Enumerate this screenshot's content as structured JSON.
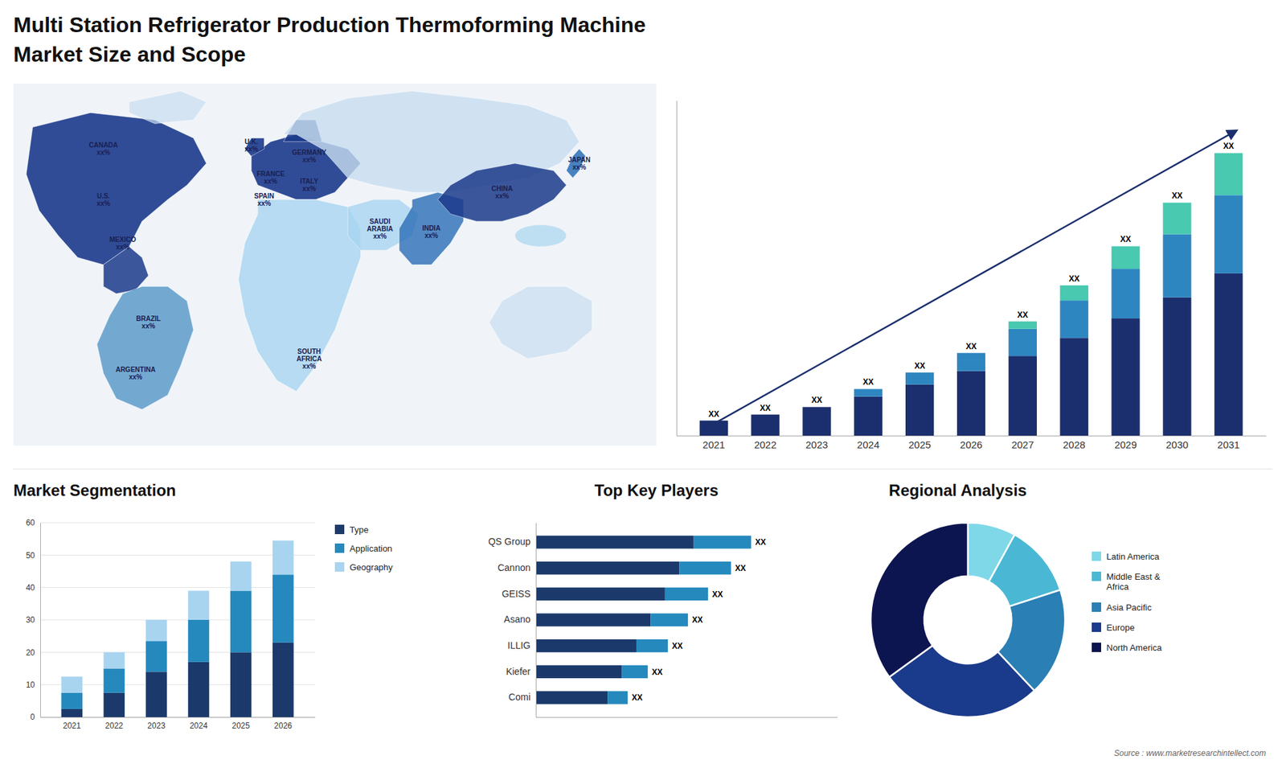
{
  "chart_data": [
    {
      "type": "bar",
      "title": "Multi Station Refrigerator Production Thermoforming Machine",
      "subtitle": "Market Size and Scope",
      "stacked": true,
      "categories": [
        "2021",
        "2022",
        "2023",
        "2024",
        "2025",
        "2026",
        "2027",
        "2028",
        "2029",
        "2030",
        "2031"
      ],
      "series": [
        {
          "color": "#1b2f6e",
          "values": [
            1.0,
            1.4,
            1.9,
            2.6,
            3.4,
            4.3,
            5.3,
            6.5,
            7.8,
            9.2,
            10.8
          ]
        },
        {
          "color": "#2e86c1",
          "values": [
            0.0,
            0.0,
            0.0,
            0.5,
            0.8,
            1.2,
            1.8,
            2.5,
            3.3,
            4.2,
            5.2
          ]
        },
        {
          "color": "#48c9b0",
          "values": [
            0.0,
            0.0,
            0.0,
            0.0,
            0.0,
            0.0,
            0.5,
            1.0,
            1.5,
            2.1,
            2.8
          ],
          "value_labels": [
            "XX",
            "XX",
            "XX",
            "XX",
            "XX",
            "XX",
            "XX",
            "XX",
            "XX",
            "XX",
            "XX"
          ]
        }
      ],
      "ylim": [
        0,
        22.3
      ],
      "tick_labels": "x"
    },
    {
      "type": "map",
      "annotations": [
        "CANADA\nxx%",
        "U.S.\nxx%",
        "MEXICO\nxx%",
        "BRAZIL\nxx%",
        "ARGENTINA\nxx%",
        "U.K.\nxx%",
        "FRANCE\nxx%",
        "SPAIN\nxx%",
        "GERMANY\nxx%",
        "ITALY\nxx%",
        "SAUDI\nARABIA\nxx%",
        "SOUTH\nAFRICA\nxx%",
        "CHINA\nxx%",
        "INDIA\nxx%",
        "JAPAN\nxx%"
      ]
    },
    {
      "type": "bar",
      "title": "Market Segmentation",
      "stacked": true,
      "categories": [
        "2021",
        "2022",
        "2023",
        "2024",
        "2025",
        "2026"
      ],
      "series": [
        {
          "name": "Type",
          "color": "#1b3a6b",
          "values": [
            2.5,
            7.5,
            14.0,
            17.0,
            20.0,
            23.0
          ]
        },
        {
          "name": "Application",
          "color": "#2589bd",
          "values": [
            5.0,
            7.5,
            9.5,
            13.0,
            19.0,
            21.0
          ]
        },
        {
          "name": "Geography",
          "color": "#a8d4f0",
          "values": [
            5.0,
            5.0,
            6.5,
            9.0,
            9.0,
            10.5
          ]
        }
      ],
      "ylim": [
        0,
        60
      ],
      "yticks": [
        0,
        10,
        20,
        30,
        40,
        50,
        60
      ],
      "grid": true,
      "legend": "right"
    },
    {
      "type": "bar",
      "title": "Top Key Players",
      "orientation": "horizontal",
      "stacked": true,
      "categories": [
        "QS Group",
        "Cannon",
        "GEISS",
        "Asano",
        "ILLIG",
        "Kiefer",
        "Comi"
      ],
      "series": [
        {
          "color": "#1b3a6b",
          "values": [
            5.5,
            5.0,
            4.5,
            4.0,
            3.5,
            3.0,
            2.5
          ]
        },
        {
          "color": "#2589bd",
          "values": [
            2.0,
            1.8,
            1.5,
            1.3,
            1.1,
            0.9,
            0.7
          ],
          "value_labels": [
            "XX",
            "XX",
            "XX",
            "XX",
            "XX",
            "XX",
            "XX"
          ]
        }
      ],
      "xlim": [
        0,
        10.5
      ],
      "tick_labels": "y"
    },
    {
      "type": "pie",
      "title": "Regional Analysis",
      "categories": [
        "Latin America",
        "Middle East &\nAfrica",
        "Asia Pacific",
        "Europe",
        "North America"
      ],
      "values": [
        8,
        12,
        18,
        27,
        35
      ],
      "colors": [
        "#7fd8e8",
        "#4ab8d4",
        "#2a7fb5",
        "#1a3a8b",
        "#0d1550"
      ],
      "legend": "right",
      "annotations": [
        "Source : www.marketresearchintellect.com"
      ]
    }
  ]
}
